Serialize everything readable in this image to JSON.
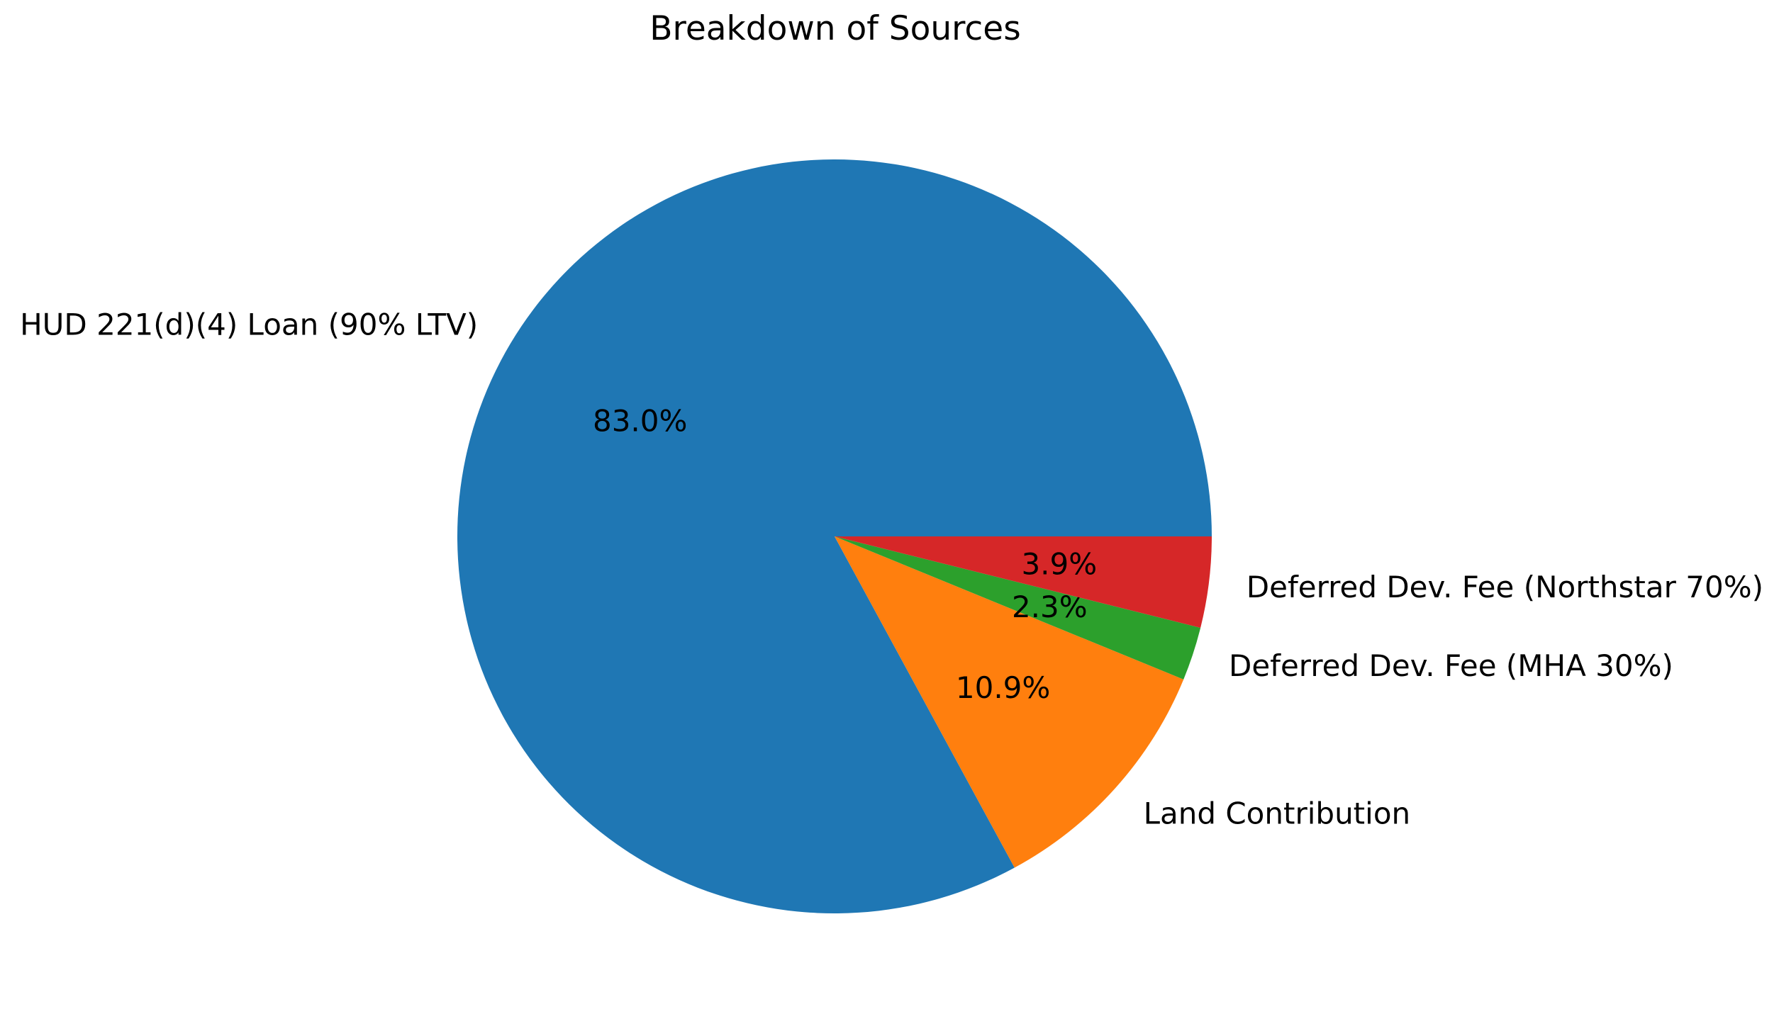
{
  "chart_data": {
    "type": "pie",
    "title": "Breakdown of Sources",
    "slices": [
      {
        "label": "HUD 221(d)(4) Loan (90% LTV)",
        "value": 83.0,
        "pct_label": "83.0%",
        "color": "#1f77b4"
      },
      {
        "label": "Land Contribution",
        "value": 10.9,
        "pct_label": "10.9%",
        "color": "#ff7f0e"
      },
      {
        "label": "Deferred Dev. Fee (MHA 30%)",
        "value": 2.3,
        "pct_label": "2.3%",
        "color": "#2ca02c"
      },
      {
        "label": "Deferred Dev. Fee (Northstar 70%)",
        "value": 3.9,
        "pct_label": "3.9%",
        "color": "#d62728"
      }
    ],
    "start_angle_deg": 0,
    "direction": "counterclockwise",
    "label_distance": 1.1,
    "pct_distance": 0.6,
    "legend": "none",
    "grid": "off",
    "text_color": "#000000",
    "background_color": "#ffffff"
  }
}
